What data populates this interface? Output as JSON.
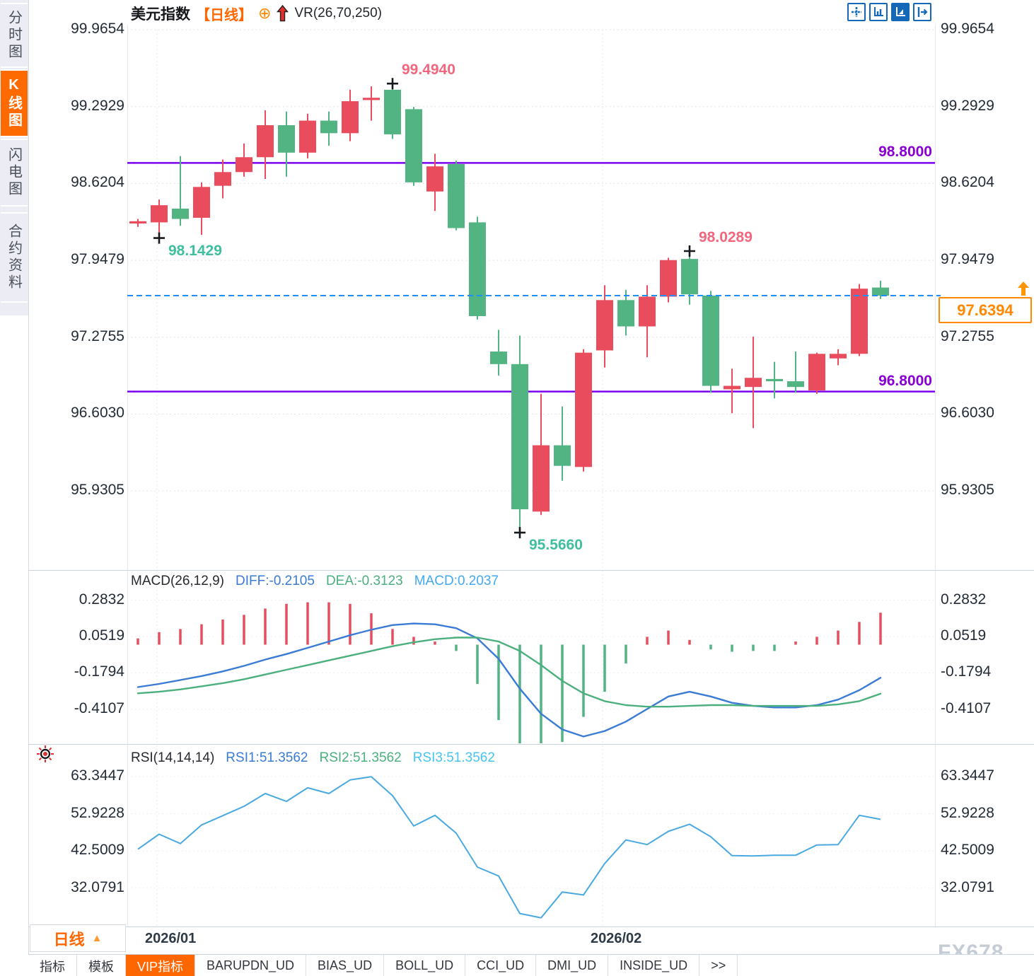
{
  "watermark": "FX678",
  "header": {
    "symbol": "美元指数",
    "period": "【日线】",
    "expand_icon": "⊕",
    "indicator": "VR(26,70,250)"
  },
  "toolbar": {
    "icons": [
      "crosshair-icon",
      "axis-range-icon",
      "chart-scale-icon",
      "pan-right-icon"
    ],
    "active_icon": "chart-scale-icon"
  },
  "sidebar": {
    "tabs": [
      {
        "label": "分时图",
        "active": false
      },
      {
        "label": "K线图",
        "active": true
      },
      {
        "label": "闪电图",
        "active": false
      },
      {
        "label": "合约资料",
        "active": false
      }
    ]
  },
  "timeframe_button": {
    "label": "日线",
    "arrow": "▲"
  },
  "bottom_tabs": {
    "items": [
      "指标",
      "模板",
      "VIP指标",
      "BARUPDN_UD",
      "BIAS_UD",
      "BOLL_UD",
      "CCI_UD",
      "DMI_UD",
      "INSIDE_UD",
      ">>"
    ],
    "active": "VIP指标"
  },
  "colors": {
    "up": "#e94d5d",
    "down": "#52b383",
    "level_line": "#7c00f0",
    "level_label": "#8a00d4",
    "last_price_line": "#1f8fff",
    "last_price_box": "#ff8800",
    "high_label": "#f2677d",
    "low_label": "#3fbf9f",
    "diff_line": "#3a7bd5",
    "dea_line": "#4cb07e",
    "rsi_line": "#49a9e0",
    "grid": "#dcdcdc"
  },
  "chart_data": [
    {
      "type": "candlestick",
      "title": "美元指数 日线",
      "y_ticks": [
        "99.9654",
        "99.2929",
        "98.6204",
        "97.9479",
        "97.2755",
        "96.6030",
        "95.9305"
      ],
      "ylim": [
        95.57,
        99.97
      ],
      "x_labels": [
        {
          "label": "2026/01",
          "candle_index": 1
        },
        {
          "label": "2026/02",
          "candle_index": 22
        }
      ],
      "columns": [
        "open",
        "high",
        "low",
        "close"
      ],
      "candles": [
        [
          98.27,
          98.31,
          98.24,
          98.29
        ],
        [
          98.28,
          98.48,
          98.1429,
          98.43
        ],
        [
          98.4,
          98.86,
          98.25,
          98.31
        ],
        [
          98.32,
          98.63,
          98.17,
          98.59
        ],
        [
          98.6,
          98.83,
          98.49,
          98.72
        ],
        [
          98.72,
          98.97,
          98.68,
          98.85
        ],
        [
          98.85,
          99.26,
          98.66,
          99.13
        ],
        [
          99.13,
          99.25,
          98.68,
          98.89
        ],
        [
          98.89,
          99.23,
          98.84,
          99.17
        ],
        [
          99.17,
          99.25,
          98.95,
          99.06
        ],
        [
          99.06,
          99.44,
          98.99,
          99.34
        ],
        [
          99.35,
          99.47,
          99.17,
          99.37
        ],
        [
          99.44,
          99.494,
          99.01,
          99.05
        ],
        [
          99.27,
          99.29,
          98.6,
          98.63
        ],
        [
          98.55,
          98.88,
          98.38,
          98.77
        ],
        [
          98.79,
          98.82,
          98.21,
          98.23
        ],
        [
          98.28,
          98.33,
          97.43,
          97.46
        ],
        [
          97.15,
          97.34,
          96.94,
          97.04
        ],
        [
          97.04,
          97.29,
          95.566,
          95.77
        ],
        [
          95.75,
          96.78,
          95.72,
          96.33
        ],
        [
          96.33,
          96.67,
          96.02,
          96.15
        ],
        [
          96.14,
          97.17,
          96.1,
          97.14
        ],
        [
          97.16,
          97.73,
          97.01,
          97.6
        ],
        [
          97.6,
          97.69,
          97.29,
          97.37
        ],
        [
          97.37,
          97.73,
          97.1,
          97.63
        ],
        [
          97.63,
          97.97,
          97.58,
          97.95
        ],
        [
          97.96,
          98.0289,
          97.56,
          97.65
        ],
        [
          97.64,
          97.68,
          96.79,
          96.85
        ],
        [
          96.82,
          97.0,
          96.61,
          96.85
        ],
        [
          96.84,
          97.28,
          96.48,
          96.92
        ],
        [
          96.91,
          97.06,
          96.74,
          96.89
        ],
        [
          96.89,
          97.15,
          96.79,
          96.84
        ],
        [
          96.81,
          97.14,
          96.78,
          97.13
        ],
        [
          97.09,
          97.17,
          97.03,
          97.13
        ],
        [
          97.13,
          97.74,
          97.11,
          97.7
        ],
        [
          97.71,
          97.77,
          97.61,
          97.6394
        ]
      ],
      "levels": [
        {
          "value": 98.8,
          "label": "98.8000"
        },
        {
          "value": 96.8,
          "label": "96.8000"
        }
      ],
      "last_price": {
        "value": 97.6394,
        "label": "97.6394"
      },
      "markers": [
        {
          "candle": 1,
          "pos": "low",
          "value": 98.1429,
          "label": "98.1429"
        },
        {
          "candle": 12,
          "pos": "high",
          "value": 99.494,
          "label": "99.4940"
        },
        {
          "candle": 18,
          "pos": "low",
          "value": 95.566,
          "label": "95.5660"
        },
        {
          "candle": 26,
          "pos": "high",
          "value": 98.0289,
          "label": "98.0289"
        }
      ]
    },
    {
      "type": "bar",
      "name": "MACD",
      "legend_title": "MACD(26,12,9)",
      "legend_diff": "DIFF:-0.2105",
      "legend_dea": "DEA:-0.3123",
      "legend_macd": "MACD:0.2037",
      "y_ticks": [
        "0.2832",
        "0.0519",
        "-0.1794",
        "-0.4107"
      ],
      "histogram": [
        0.04,
        0.08,
        0.1,
        0.13,
        0.16,
        0.19,
        0.23,
        0.26,
        0.27,
        0.27,
        0.26,
        0.2,
        0.1,
        0.05,
        0.02,
        -0.04,
        -0.25,
        -0.48,
        -0.72,
        -0.75,
        -0.62,
        -0.46,
        -0.3,
        -0.12,
        0.05,
        0.09,
        0.03,
        -0.03,
        -0.045,
        -0.04,
        -0.04,
        0.02,
        0.05,
        0.09,
        0.145,
        0.2037
      ],
      "diff": [
        -0.27,
        -0.25,
        -0.225,
        -0.2,
        -0.17,
        -0.135,
        -0.095,
        -0.06,
        -0.02,
        0.02,
        0.06,
        0.095,
        0.125,
        0.135,
        0.13,
        0.105,
        0.04,
        -0.09,
        -0.28,
        -0.44,
        -0.54,
        -0.585,
        -0.55,
        -0.49,
        -0.41,
        -0.33,
        -0.3,
        -0.33,
        -0.37,
        -0.39,
        -0.4,
        -0.4,
        -0.385,
        -0.35,
        -0.29,
        -0.2105
      ],
      "dea": [
        -0.31,
        -0.3,
        -0.285,
        -0.265,
        -0.245,
        -0.22,
        -0.19,
        -0.16,
        -0.13,
        -0.1,
        -0.07,
        -0.04,
        -0.01,
        0.015,
        0.035,
        0.045,
        0.045,
        0.02,
        -0.04,
        -0.13,
        -0.23,
        -0.31,
        -0.36,
        -0.385,
        -0.395,
        -0.395,
        -0.39,
        -0.385,
        -0.385,
        -0.39,
        -0.39,
        -0.39,
        -0.39,
        -0.38,
        -0.36,
        -0.3123
      ]
    },
    {
      "type": "line",
      "name": "RSI",
      "legend_title": "RSI(14,14,14)",
      "legend_rsi1": "RSI1:51.3562",
      "legend_rsi2": "RSI2:51.3562",
      "legend_rsi3": "RSI3:51.3562",
      "y_ticks": [
        "63.3447",
        "52.9228",
        "42.5009",
        "32.0791"
      ],
      "values": [
        43.0,
        47.2,
        44.6,
        49.8,
        52.4,
        55.0,
        58.6,
        56.4,
        60.2,
        58.6,
        62.4,
        63.3,
        58.0,
        49.5,
        52.5,
        47.5,
        38.0,
        35.5,
        25.0,
        23.8,
        31.0,
        30.2,
        39.0,
        45.6,
        44.3,
        48.0,
        50.0,
        46.5,
        41.2,
        41.1,
        41.3,
        41.3,
        44.2,
        44.3,
        52.5,
        51.3562
      ]
    }
  ]
}
